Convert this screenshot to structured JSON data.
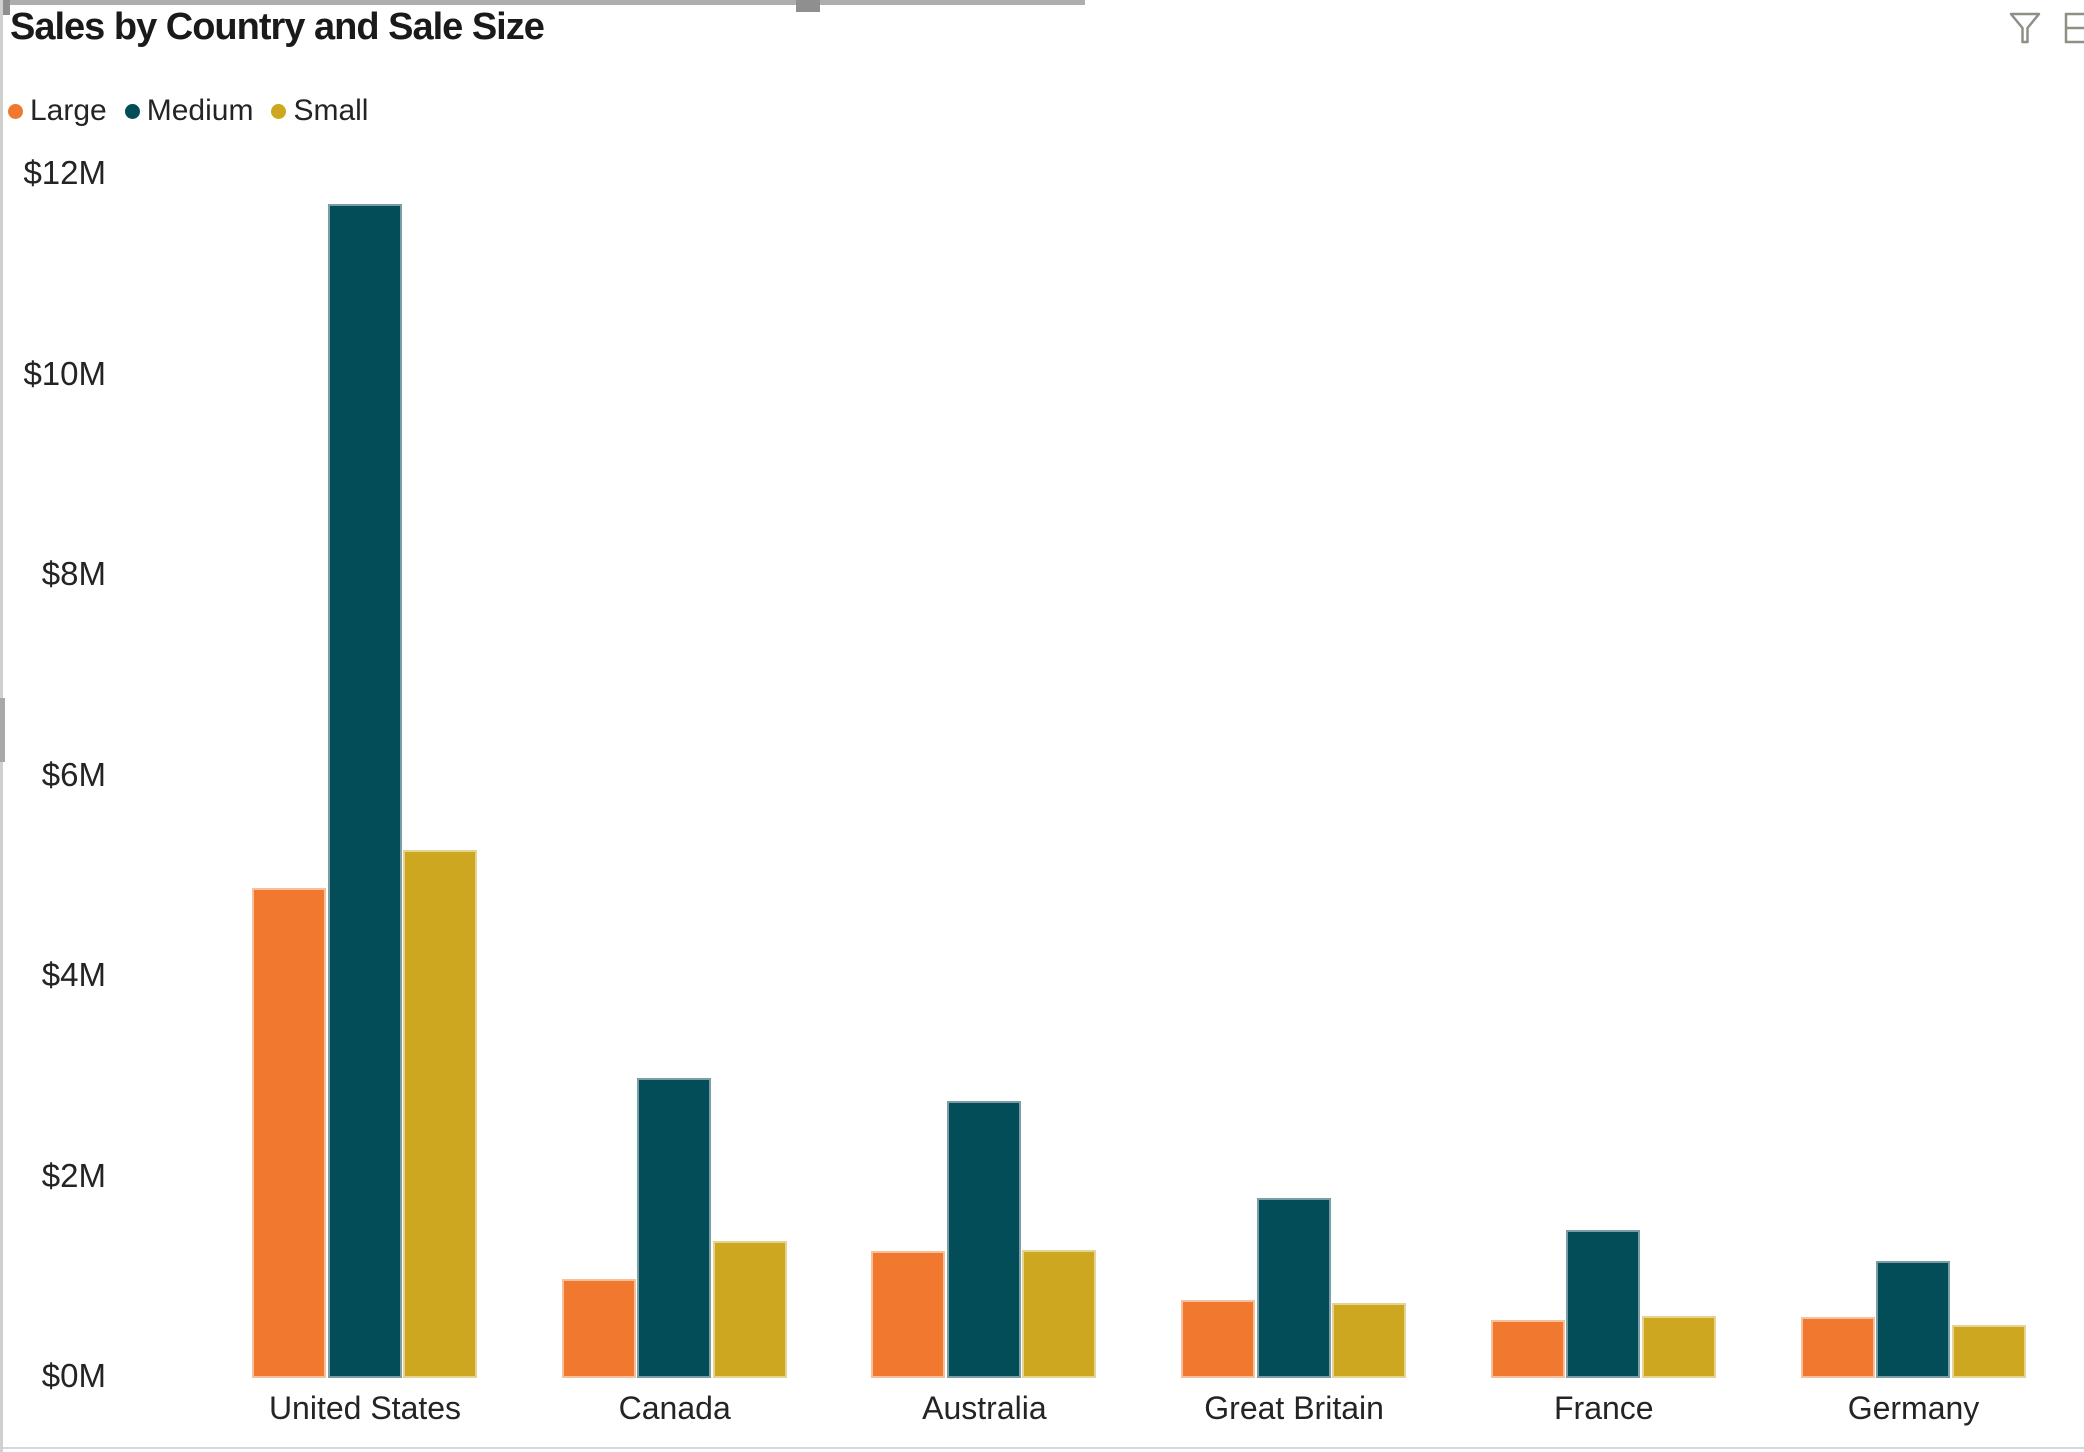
{
  "toolbar": {
    "icons": [
      {
        "name": "filter-icon"
      },
      {
        "name": "options-icon-partial"
      }
    ],
    "icon_color": "#8f8f85"
  },
  "decorations": {
    "has_top_scrollbar": true,
    "has_left_scrollbar": true,
    "bottom_border_color": "#d8d8d8"
  },
  "chart_data": {
    "type": "bar",
    "title": "Sales by Country and Sale Size",
    "categories": [
      "United States",
      "Canada",
      "Australia",
      "Great Britain",
      "France",
      "Germany"
    ],
    "series": [
      {
        "name": "Large",
        "color": "#F0792F",
        "border": "#f7c09a",
        "values": [
          4.89,
          0.99,
          1.27,
          0.78,
          0.58,
          0.61
        ]
      },
      {
        "name": "Medium",
        "color": "#024D57",
        "border": "#7b9da5",
        "values": [
          11.71,
          2.99,
          2.76,
          1.8,
          1.48,
          1.17
        ]
      },
      {
        "name": "Small",
        "color": "#CCA71F",
        "border": "#e6d391",
        "values": [
          5.27,
          1.37,
          1.28,
          0.75,
          0.62,
          0.53
        ]
      }
    ],
    "y_ticks": [
      "$0M",
      "$2M",
      "$4M",
      "$6M",
      "$8M",
      "$10M",
      "$12M"
    ],
    "y_tick_values": [
      0,
      2,
      4,
      6,
      8,
      10,
      12
    ],
    "ylim": [
      0,
      12
    ],
    "value_unit": "$M",
    "legend_position": "top-left",
    "grid": false,
    "text_color": "#252423"
  }
}
